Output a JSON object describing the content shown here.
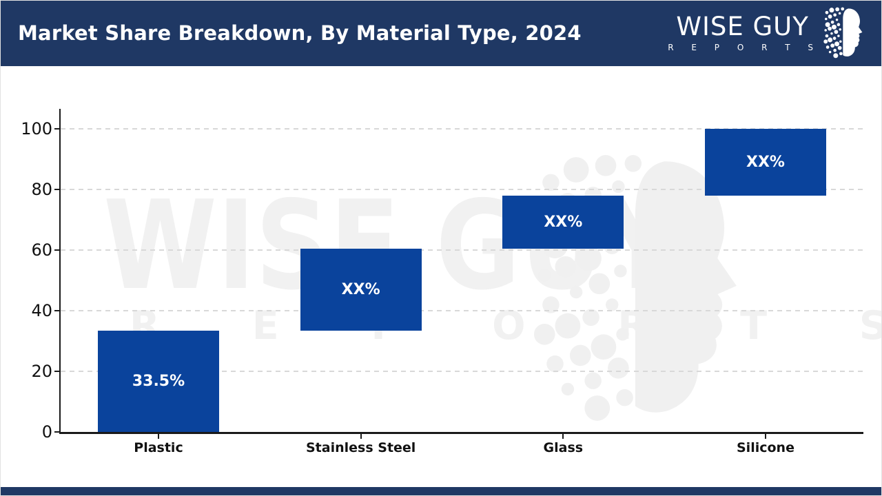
{
  "header": {
    "title": "Market Share Breakdown, By Material Type, 2024"
  },
  "logo": {
    "line1": "WISE GUY",
    "line2": "R E P O R T S"
  },
  "watermark": {
    "line1": "WISE GUY",
    "line2": "R E P O R T S"
  },
  "chart_data": {
    "type": "bar",
    "subtype": "floating-waterfall",
    "title": "Market Share Breakdown, By Material Type, 2024",
    "categories": [
      "Plastic",
      "Stainless Steel",
      "Glass",
      "Silicone"
    ],
    "segments": [
      {
        "category": "Plastic",
        "start": 0,
        "end": 33.5,
        "label": "33.5%"
      },
      {
        "category": "Stainless Steel",
        "start": 33.5,
        "end": 60.5,
        "label": "XX%"
      },
      {
        "category": "Glass",
        "start": 60.5,
        "end": 78,
        "label": "XX%"
      },
      {
        "category": "Silicone",
        "start": 78,
        "end": 100,
        "label": "XX%"
      }
    ],
    "y_ticks": [
      0,
      20,
      40,
      60,
      80,
      100
    ],
    "ylim": [
      0,
      106
    ],
    "xlabel": "",
    "ylabel": "",
    "grid": "horizontal-dashed",
    "legend": null
  },
  "colors": {
    "header_bg": "#1F3864",
    "footer_bg": "#1F3864",
    "bar": "#0A439C",
    "grid": "#d8d8d8",
    "axis": "#1a1a1a",
    "watermark": "#f1f1f1"
  }
}
